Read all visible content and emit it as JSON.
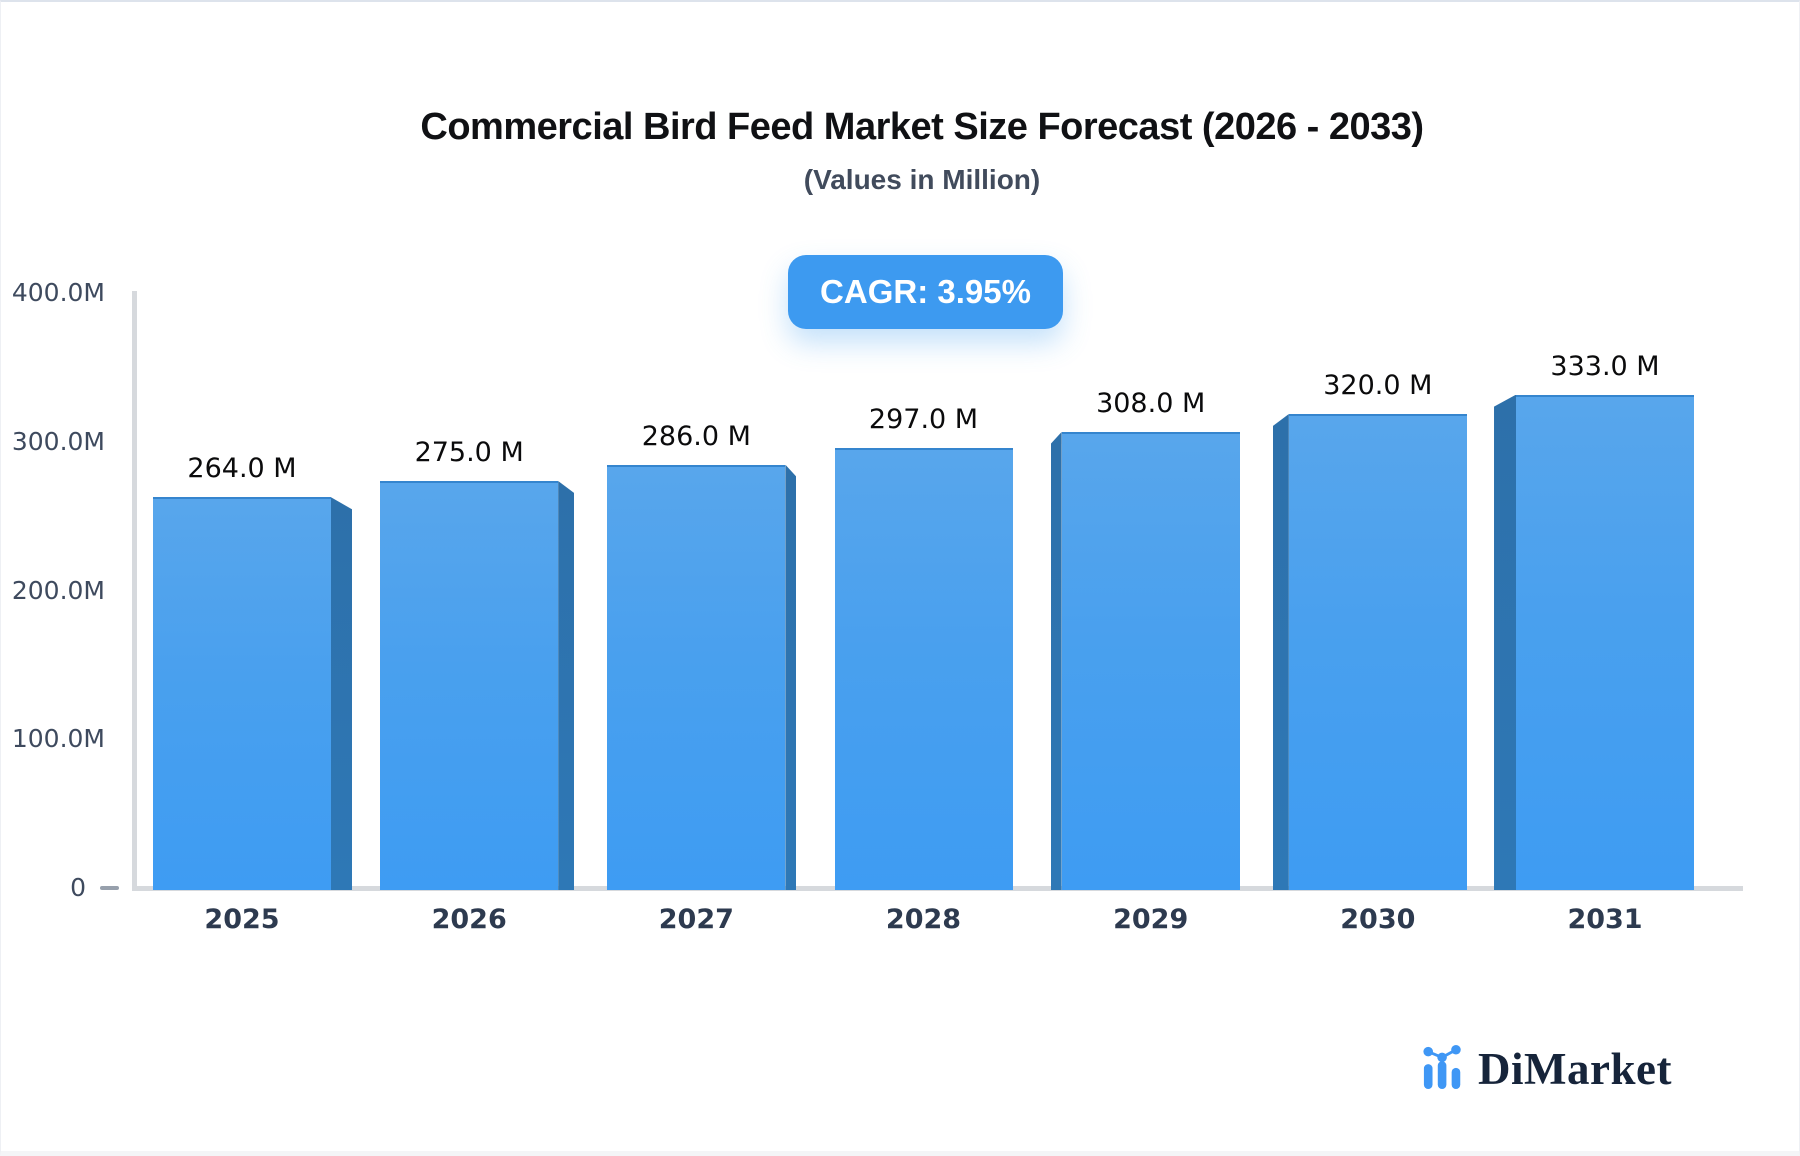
{
  "chart_data": {
    "type": "bar",
    "style": "3d-column",
    "title": "Commercial Bird Feed Market Size Forecast (2026 - 2033)",
    "subtitle": "(Values in Million)",
    "badge_label": "CAGR: 3.95%",
    "unit": "Million",
    "categories": [
      "2025",
      "2026",
      "2027",
      "2028",
      "2029",
      "2030",
      "2031"
    ],
    "values": [
      264,
      275,
      286,
      297,
      308,
      320,
      333
    ],
    "value_labels": [
      "264.0 M",
      "275.0 M",
      "286.0 M",
      "297.0 M",
      "308.0 M",
      "320.0 M",
      "333.0 M"
    ],
    "y_axis": {
      "range": [
        0,
        400
      ],
      "ticks": [
        {
          "label": "400.0M",
          "value": 400
        },
        {
          "label": "300.0M",
          "value": 300
        },
        {
          "label": "200.0M",
          "value": 200
        },
        {
          "label": "100.0M",
          "value": 100
        },
        {
          "label": "0",
          "value": 0,
          "dash": true
        }
      ]
    },
    "grid": false,
    "legend": false
  },
  "logo": {
    "icon": "bar-chart-with-trendline-logo-icon",
    "text": "DiMarket"
  },
  "colors": {
    "bar-top": "#58a6ec",
    "bar-mid": "#49a0ee",
    "bar-bottom": "#3e9cf3",
    "bar-side": "#2e78b6",
    "bar-side-dark": "#2d70aa",
    "badge-bg": "#3d9af0",
    "badge-text": "#ffffff",
    "axis-line": "#d6d9dd",
    "zero-dash": "#97a0ac",
    "title-text": "#101114",
    "subtitle-text": "#414b5c",
    "ytick-text": "#3e4a5e",
    "xtick-text": "#2d3a4f",
    "value-text": "#0b0b0c",
    "logo-blue": "#3f97f5",
    "logo-text": "#16243a"
  }
}
